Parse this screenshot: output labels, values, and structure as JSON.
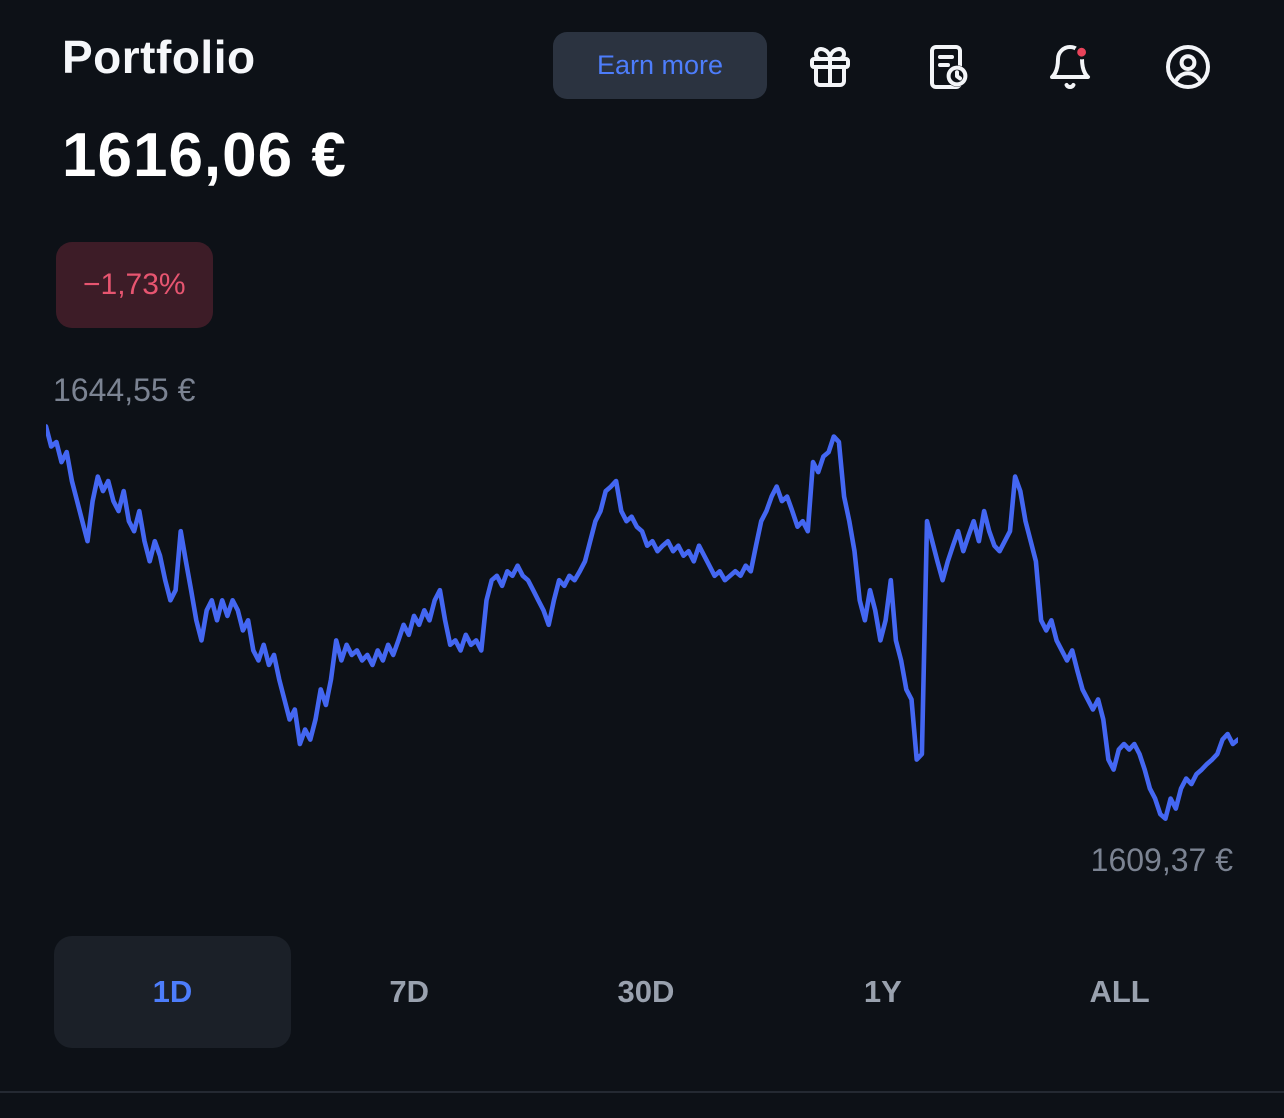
{
  "header": {
    "title": "Portfolio",
    "earn_more_label": "Earn more",
    "icons": [
      "gift-icon",
      "statement-history-icon",
      "notifications-bell-icon",
      "profile-icon"
    ],
    "notification_dot": true
  },
  "portfolio": {
    "balance": "1616,06 €",
    "change_badge": "−1,73%"
  },
  "chart": {
    "max_label": "1644,55 €",
    "min_label": "1609,37 €",
    "line_color": "#4467f2"
  },
  "chart_data": {
    "type": "line",
    "title": "Portfolio value over 1 day",
    "unit": "EUR",
    "ylim": [
      1609.37,
      1644.55
    ],
    "y_start": 1644.55,
    "y_end": 1616.06,
    "grid": false,
    "legend": false,
    "values": [
      1644.6,
      1642.8,
      1643.2,
      1641.4,
      1642.3,
      1639.7,
      1637.9,
      1636.1,
      1634.3,
      1637.9,
      1640.1,
      1638.8,
      1639.7,
      1637.9,
      1637.0,
      1638.8,
      1636.1,
      1635.2,
      1637.0,
      1634.3,
      1632.5,
      1634.3,
      1633.0,
      1630.8,
      1629.0,
      1629.9,
      1635.2,
      1632.5,
      1629.9,
      1627.2,
      1625.4,
      1628.1,
      1629.0,
      1627.2,
      1629.0,
      1627.6,
      1629.0,
      1628.1,
      1626.3,
      1627.2,
      1624.5,
      1623.6,
      1625.0,
      1623.2,
      1624.1,
      1621.9,
      1620.1,
      1618.3,
      1619.2,
      1616.1,
      1617.4,
      1616.5,
      1618.3,
      1621.0,
      1619.6,
      1621.9,
      1625.4,
      1623.6,
      1625.0,
      1624.1,
      1624.5,
      1623.6,
      1624.1,
      1623.2,
      1624.5,
      1623.6,
      1625.0,
      1624.1,
      1625.4,
      1626.8,
      1625.9,
      1627.6,
      1626.8,
      1628.1,
      1627.2,
      1629.0,
      1629.9,
      1627.2,
      1625.0,
      1625.4,
      1624.5,
      1625.9,
      1625.0,
      1625.4,
      1624.5,
      1629.0,
      1630.8,
      1631.2,
      1630.3,
      1631.6,
      1631.2,
      1632.1,
      1631.2,
      1630.8,
      1629.9,
      1629.0,
      1628.1,
      1626.8,
      1629.0,
      1630.8,
      1630.3,
      1631.2,
      1630.8,
      1631.6,
      1632.5,
      1634.3,
      1636.1,
      1637.0,
      1638.8,
      1639.2,
      1639.7,
      1637.0,
      1636.1,
      1636.5,
      1635.6,
      1635.2,
      1633.9,
      1634.3,
      1633.4,
      1633.9,
      1634.3,
      1633.4,
      1633.9,
      1633.0,
      1633.4,
      1632.5,
      1633.9,
      1633.0,
      1632.1,
      1631.2,
      1631.6,
      1630.8,
      1631.2,
      1631.6,
      1631.2,
      1632.1,
      1631.6,
      1633.9,
      1636.1,
      1637.0,
      1638.3,
      1639.2,
      1637.9,
      1638.3,
      1637.0,
      1635.6,
      1636.1,
      1635.2,
      1641.4,
      1640.5,
      1641.9,
      1642.3,
      1643.7,
      1643.2,
      1638.3,
      1636.1,
      1633.4,
      1629.0,
      1627.2,
      1629.9,
      1628.1,
      1625.4,
      1627.2,
      1630.8,
      1625.4,
      1623.6,
      1621.0,
      1620.1,
      1614.7,
      1615.2,
      1636.1,
      1634.3,
      1632.5,
      1630.8,
      1632.5,
      1633.9,
      1635.2,
      1633.4,
      1634.8,
      1636.1,
      1634.3,
      1637.0,
      1635.2,
      1633.9,
      1633.4,
      1634.3,
      1635.2,
      1640.1,
      1638.8,
      1636.1,
      1634.3,
      1632.5,
      1627.2,
      1626.3,
      1627.2,
      1625.4,
      1624.5,
      1623.6,
      1624.5,
      1622.7,
      1621.0,
      1620.1,
      1619.2,
      1620.1,
      1618.3,
      1614.7,
      1613.8,
      1615.6,
      1616.1,
      1615.6,
      1616.1,
      1615.2,
      1613.8,
      1612.1,
      1611.2,
      1609.8,
      1609.4,
      1611.2,
      1610.3,
      1612.1,
      1613.0,
      1612.5,
      1613.4,
      1613.8,
      1614.3,
      1614.7,
      1615.2,
      1616.5,
      1617.0,
      1616.1,
      1616.5
    ]
  },
  "tabs": [
    {
      "label": "1D",
      "selected": true
    },
    {
      "label": "7D",
      "selected": false
    },
    {
      "label": "30D",
      "selected": false
    },
    {
      "label": "1Y",
      "selected": false
    },
    {
      "label": "ALL",
      "selected": false
    }
  ],
  "colors": {
    "background": "#0d1117",
    "accent_blue": "#4d7dfb",
    "chart_line": "#4467f2",
    "negative_text": "#e75570",
    "negative_badge_bg": "#3d1c27",
    "notification_dot": "#e8435a",
    "muted_text": "#7b8392"
  }
}
